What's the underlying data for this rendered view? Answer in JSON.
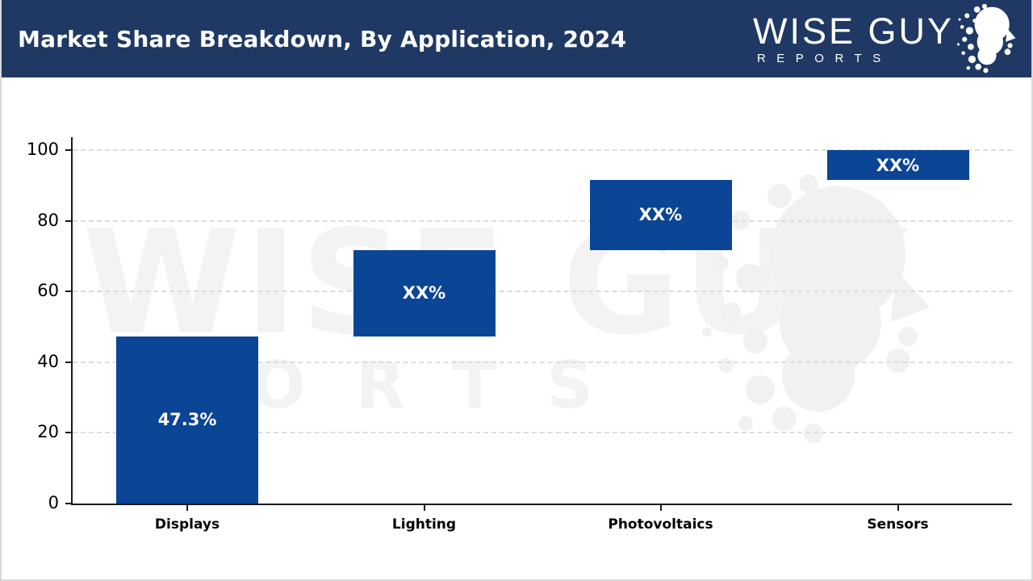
{
  "header": {
    "title": "Market Share Breakdown, By Application, 2024"
  },
  "logo": {
    "wordmark": "WISE GUY",
    "subtext": "REPORTS"
  },
  "watermark": {
    "wordmark": "WISE GUY",
    "subtext": "PORTS"
  },
  "chart_data": {
    "type": "bar",
    "subtype": "waterfall",
    "title": "Market Share Breakdown, By Application, 2024",
    "categories": [
      "Displays",
      "Lighting",
      "Photovoltaics",
      "Sensors"
    ],
    "bar_labels": [
      "47.3%",
      "XX%",
      "XX%",
      "XX%"
    ],
    "cumulative_end": [
      47.3,
      71.8,
      91.5,
      100
    ],
    "segment_values": [
      47.3,
      24.5,
      19.7,
      8.5
    ],
    "ylabel": "",
    "xlabel": "",
    "yticks": [
      0,
      20,
      40,
      60,
      80,
      100
    ],
    "ylim": [
      0,
      105
    ],
    "grid": "horizontal-dashed",
    "legend": "none",
    "bar_color": "#0b4596",
    "bar_label_color": "#ffffff"
  },
  "colors": {
    "header_bg": "#1f3864",
    "bar_blue": "#0b4596",
    "grid": "#dcdcdc",
    "axis": "#1a1a1a",
    "watermark": "#f3f3f3",
    "background": "#ffffff",
    "border": "#d9d9d9"
  }
}
